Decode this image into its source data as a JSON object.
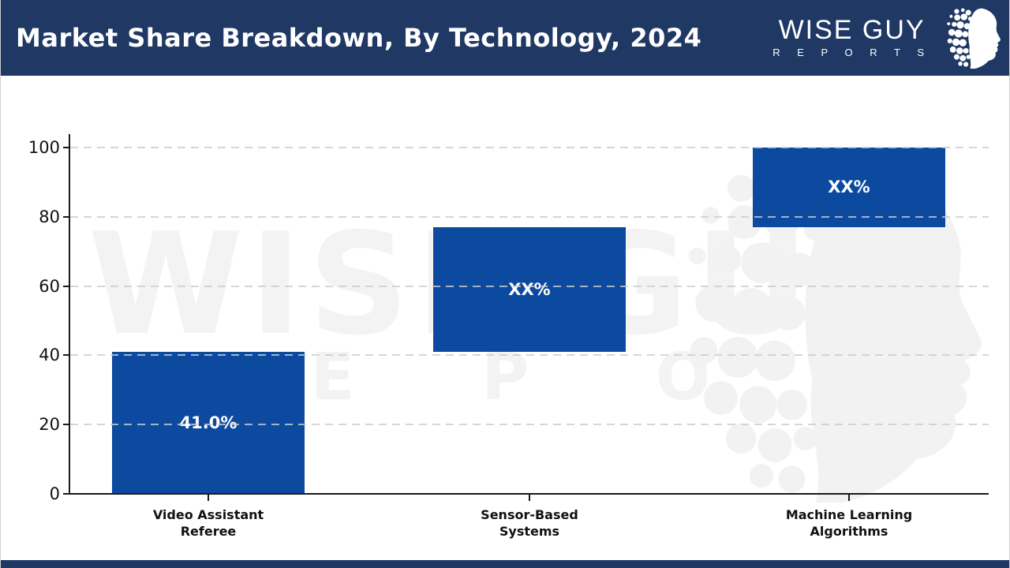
{
  "header": {
    "title": "Market Share Breakdown, By Technology, 2024",
    "brand": {
      "line1": "WISE GUY",
      "line2": "R E P O R T S"
    }
  },
  "watermark": {
    "line1": "WISE GUY",
    "line2": "R E P O R T S"
  },
  "colors": {
    "header_bg": "#203864",
    "bar": "#0c4aa0",
    "grid": "#cccccc",
    "axis": "#1a1a1a",
    "watermark": "#f2f2f2"
  },
  "chart_data": {
    "type": "bar",
    "variant": "waterfall",
    "title": "Market Share Breakdown, By Technology, 2024",
    "categories": [
      [
        "Video Assistant",
        "Referee"
      ],
      [
        "Sensor-Based",
        "Systems"
      ],
      [
        "Machine Learning",
        "Algorithms"
      ]
    ],
    "series": [
      {
        "name": "Video Assistant Referee",
        "start": 0,
        "end": 41,
        "increment": 41,
        "label": "41.0%"
      },
      {
        "name": "Sensor-Based Systems",
        "start": 41,
        "end": 77,
        "increment": 36,
        "label": "XX%"
      },
      {
        "name": "Machine Learning Algorithms",
        "start": 77,
        "end": 100,
        "increment": 23,
        "label": "XX%"
      }
    ],
    "ylim": [
      0,
      100
    ],
    "yticks": [
      0,
      20,
      40,
      60,
      80,
      100
    ],
    "grid": "horizontal-dashed",
    "legend": "none",
    "bar_color": "#0c4aa0",
    "bar_label_color": "#ffffff"
  }
}
